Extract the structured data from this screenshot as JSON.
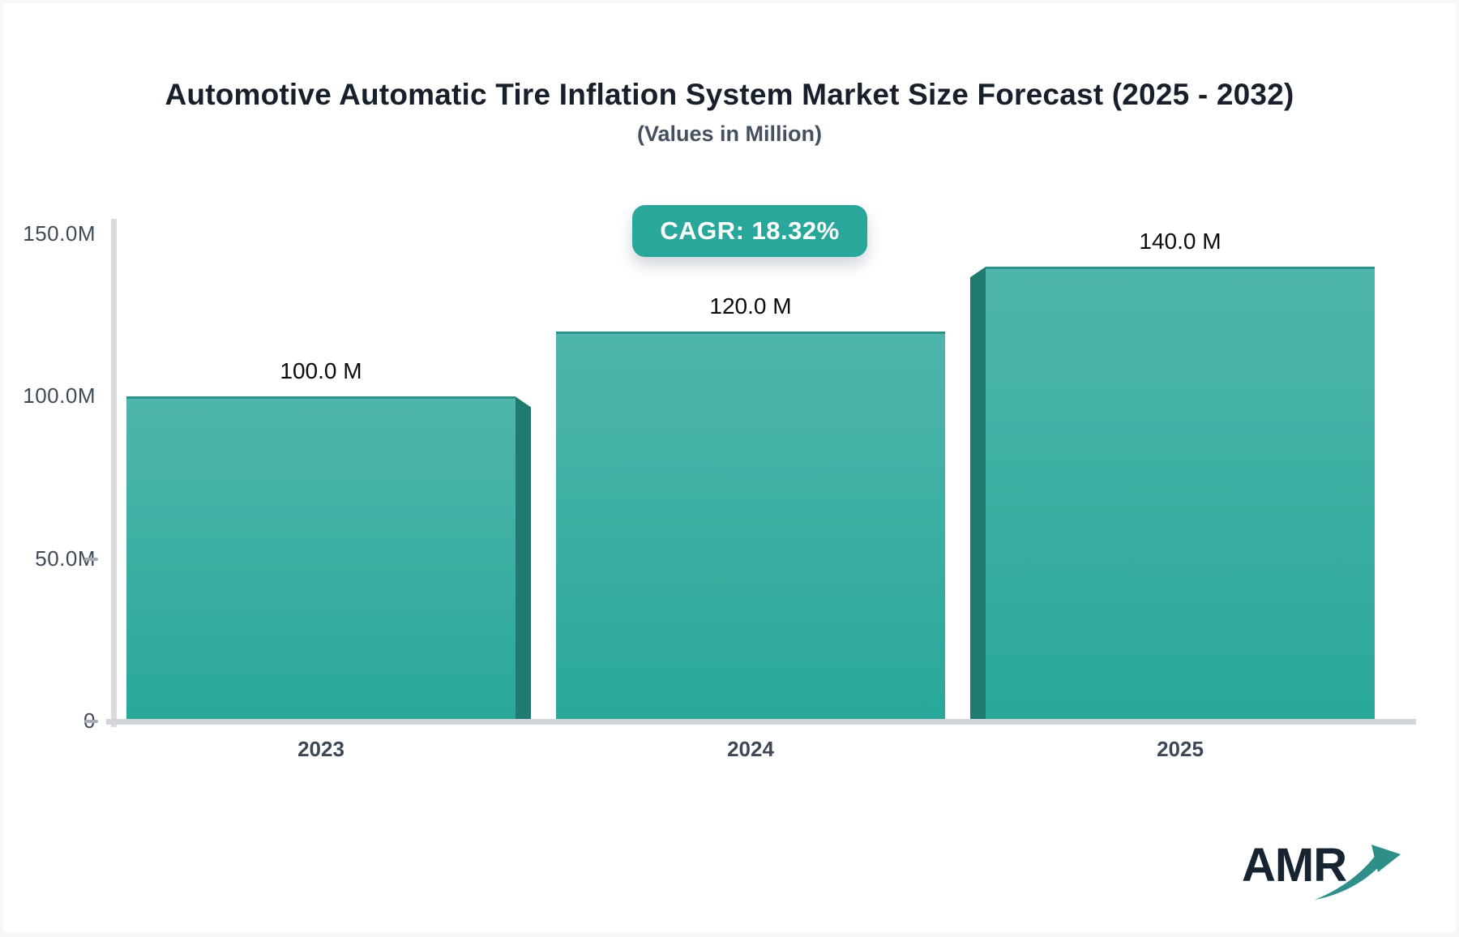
{
  "title": "Automotive Automatic Tire Inflation System Market Size Forecast (2025 - 2032)",
  "subtitle": "(Values in Million)",
  "badge": {
    "label": "CAGR: 18.32%"
  },
  "logo": {
    "text": "AMR"
  },
  "colors": {
    "accent": "#2aa79b",
    "bar_top": "#4fb5ac",
    "bar_bottom": "#29a89a",
    "bar_bevel": "#1f7b70",
    "axis": "#d8dbdf",
    "text_dark": "#171f2a",
    "text_gray": "#46515f"
  },
  "chart_data": {
    "type": "bar",
    "title": "Automotive Automatic Tire Inflation System Market Size Forecast (2025 - 2032)",
    "subtitle": "(Values in Million)",
    "categories": [
      "2023",
      "2024",
      "2025"
    ],
    "values": [
      100,
      120,
      140
    ],
    "value_labels": [
      "100.0 M",
      "120.0 M",
      "140.0 M"
    ],
    "bar_bevels": [
      "right",
      "none",
      "left"
    ],
    "unit": "Million",
    "xlabel": "",
    "ylabel": "",
    "ylim": [
      0,
      150
    ],
    "grid": false,
    "legend": false,
    "y_ticks": [
      {
        "label": "150.0M",
        "value": 150,
        "dash": false
      },
      {
        "label": "100.0M",
        "value": 100,
        "dash": false
      },
      {
        "label": "50.0M",
        "value": 50,
        "dash": true
      },
      {
        "label": "0",
        "value": 0,
        "dash": true
      }
    ]
  }
}
